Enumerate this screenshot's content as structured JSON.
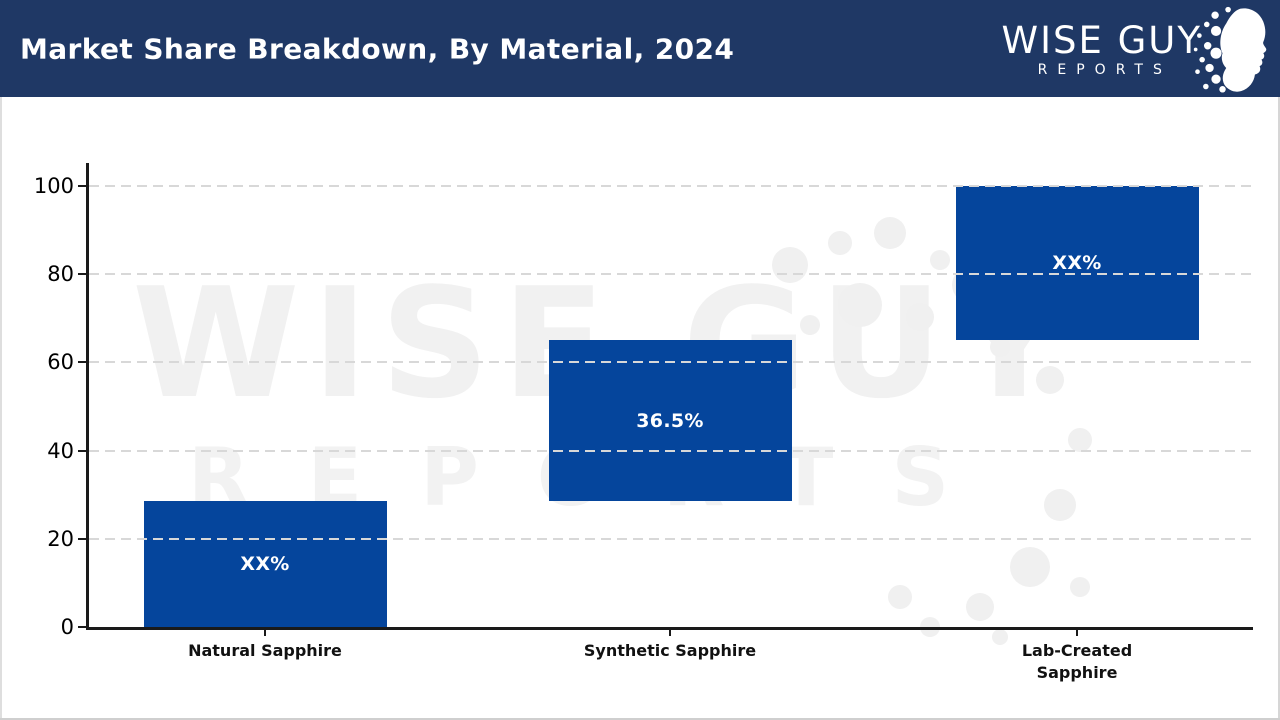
{
  "header": {
    "title": "Market Share Breakdown, By Material, 2024",
    "bg_color": "#1f3865",
    "logo": {
      "line1": "WISE GUY",
      "line2": "REPORTS"
    }
  },
  "watermark": {
    "line1": "WISE GUY",
    "line2": "REPORTS"
  },
  "chart_data": {
    "type": "bar",
    "variant": "waterfall-stacked",
    "title": "",
    "xlabel": "",
    "ylabel": "",
    "categories": [
      "Natural Sapphire",
      "Synthetic Sapphire",
      "Lab-Created\nSapphire"
    ],
    "segments": [
      {
        "category": "Natural Sapphire",
        "start": 0,
        "end": 28.5,
        "value_label": "XX%"
      },
      {
        "category": "Synthetic Sapphire",
        "start": 28.5,
        "end": 65,
        "value_label": "36.5%"
      },
      {
        "category": "Lab-Created Sapphire",
        "start": 65,
        "end": 100,
        "value_label": "XX%"
      }
    ],
    "ylim": [
      0,
      100
    ],
    "yticks": [
      0,
      20,
      40,
      60,
      80,
      100
    ],
    "grid": "horizontal-dashed",
    "legend": "none",
    "bar_color": "#05459c",
    "bar_label_color": "#ffffff",
    "axis_color": "#1a1a1a",
    "grid_color": "#d8d8d8"
  }
}
